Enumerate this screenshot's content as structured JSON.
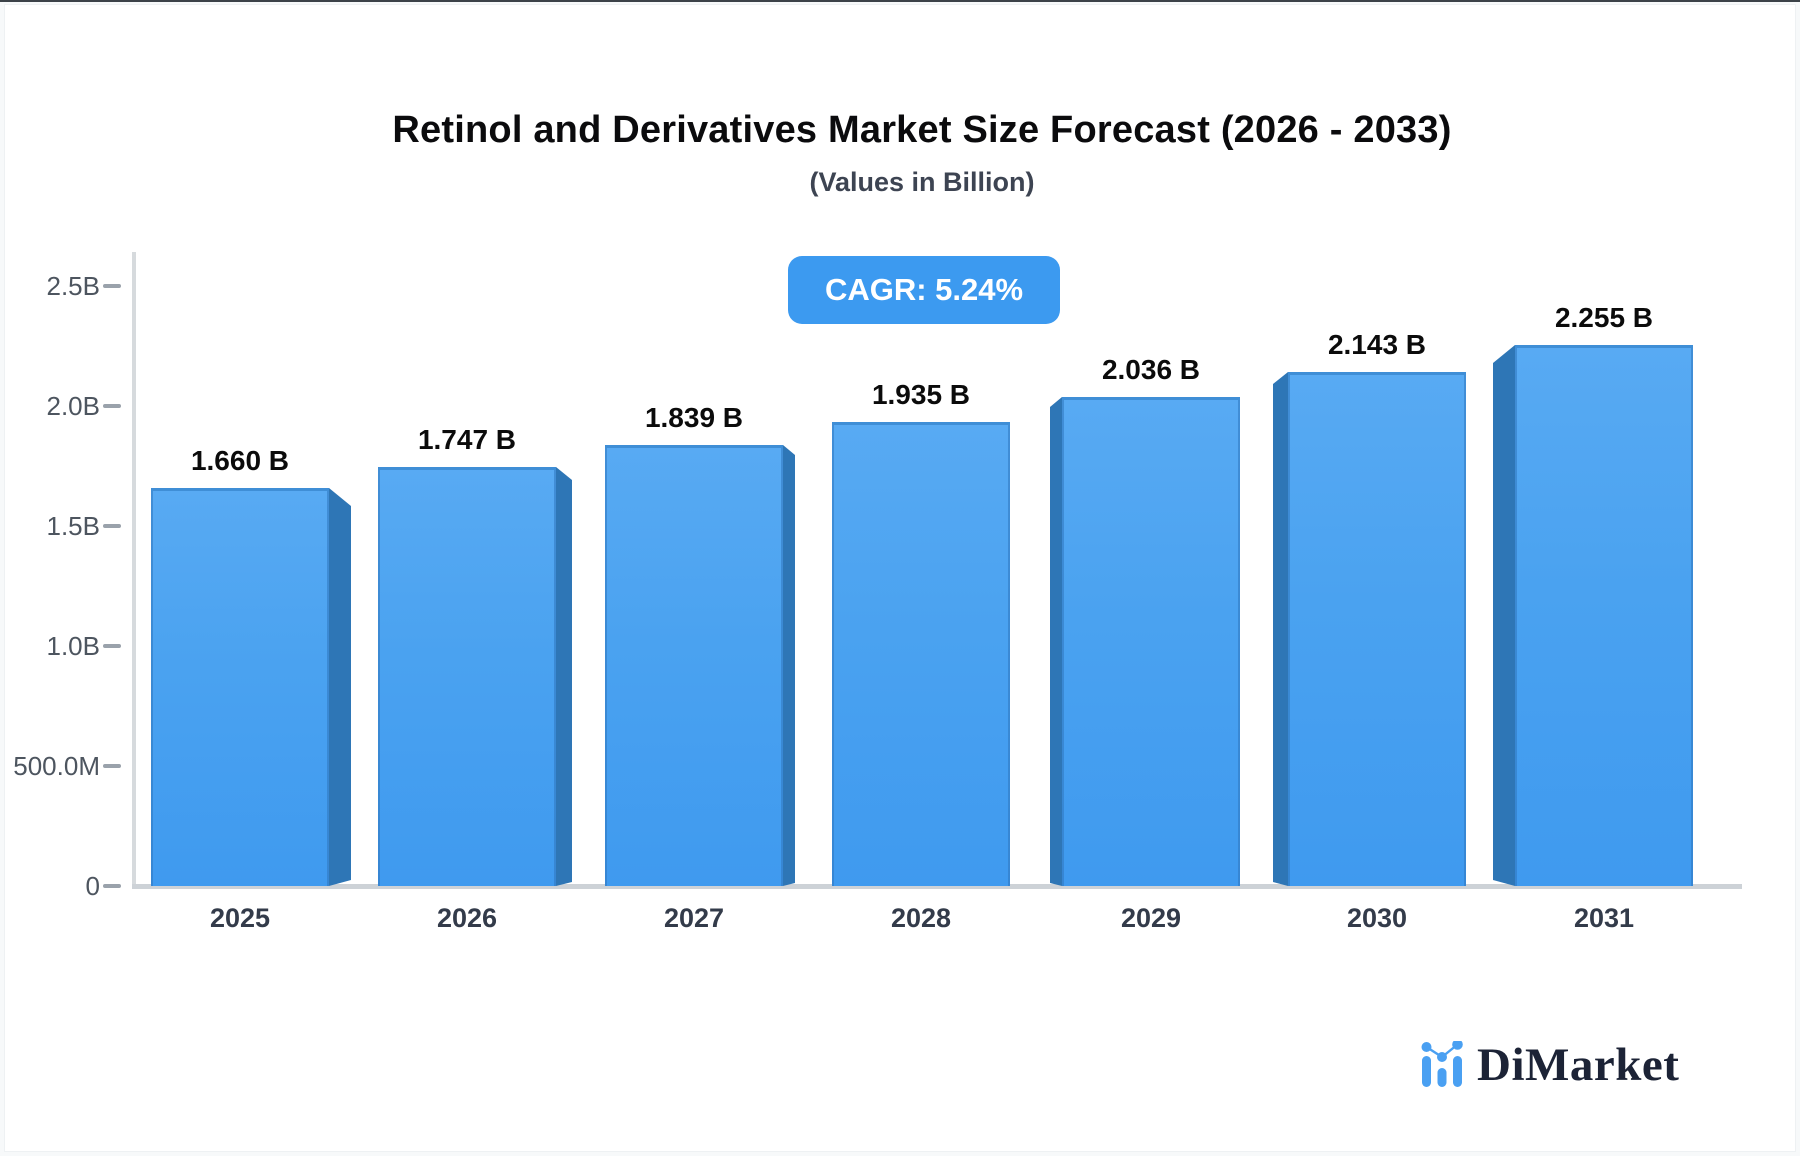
{
  "header": {
    "title": "Retinol and Derivatives Market Size Forecast (2026 - 2033)",
    "subtitle": "(Values in Billion)",
    "cagr_badge": "CAGR: 5.24%"
  },
  "chart_data": {
    "type": "bar",
    "title": "Retinol and Derivatives Market Size Forecast (2026 - 2033)",
    "subtitle": "(Values in Billion)",
    "cagr_label": "CAGR: 5.24%",
    "cagr_percent": 5.24,
    "categories": [
      "2025",
      "2026",
      "2027",
      "2028",
      "2029",
      "2030",
      "2031"
    ],
    "values": [
      1.66,
      1.747,
      1.839,
      1.935,
      2.036,
      2.143,
      2.255
    ],
    "bar_labels": [
      "1.660 B",
      "1.747 B",
      "1.839 B",
      "1.935 B",
      "2.036 B",
      "2.143 B",
      "2.255 B"
    ],
    "y_axis_ticks": [
      {
        "label": "0",
        "value": 0
      },
      {
        "label": "500.0M",
        "value": 0.5
      },
      {
        "label": "1.0B",
        "value": 1.0
      },
      {
        "label": "1.5B",
        "value": 1.5
      },
      {
        "label": "2.0B",
        "value": 2.0
      },
      {
        "label": "2.5B",
        "value": 2.5
      }
    ],
    "ylim": [
      0,
      2.5
    ],
    "grid": false,
    "legend": false,
    "colors": {
      "bar_top": "#58aaf3",
      "bar_bottom": "#3f9aef",
      "bar_side_face": "#2e76b6",
      "badge": "#3c9af0",
      "axis_line": "#cdd2d7",
      "tick_text": "#4d555f"
    }
  },
  "logo": {
    "text": "DiMarket",
    "icon": "bar-chart-with-dots-icon",
    "icon_color": "#4aa0f2",
    "text_color": "#1c2336"
  }
}
